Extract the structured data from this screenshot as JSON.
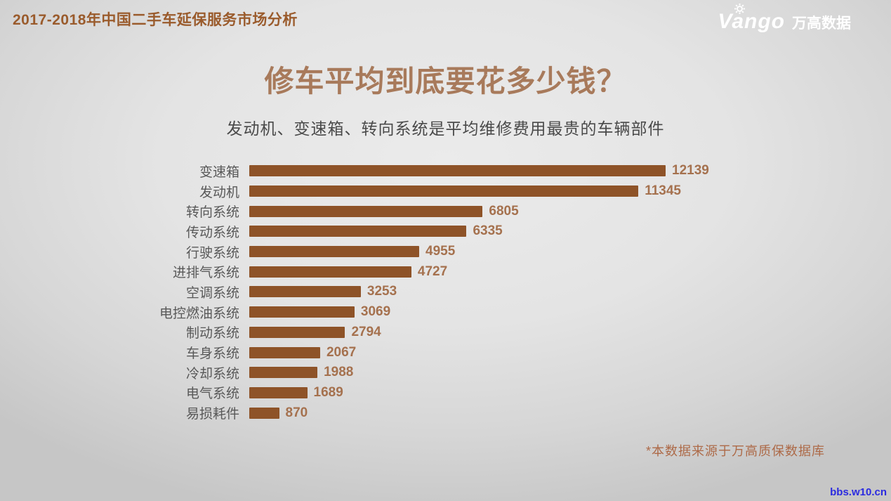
{
  "header": {
    "report_title": "2017-2018年中国二手车延保服务市场分析",
    "logo": {
      "brand": "Vango",
      "brand_cn": "万高数据",
      "icon": "gear-icon"
    }
  },
  "main": {
    "title": "修车平均到底要花多少钱？",
    "subtitle": "发动机、变速箱、转向系统是平均维修费用最贵的车辆部件"
  },
  "chart_data": {
    "type": "bar",
    "orientation": "horizontal",
    "title": "修车平均到底要花多少钱？",
    "subtitle": "发动机、变速箱、转向系统是平均维修费用最贵的车辆部件",
    "categories": [
      "变速箱",
      "发动机",
      "转向系统",
      "传动系统",
      "行驶系统",
      "进排气系统",
      "空调系统",
      "电控燃油系统",
      "制动系统",
      "车身系统",
      "冷却系统",
      "电气系统",
      "易损耗件"
    ],
    "values": [
      12139,
      11345,
      6805,
      6335,
      4955,
      4727,
      3253,
      3069,
      2794,
      2067,
      1988,
      1689,
      870
    ],
    "xlabel": "",
    "ylabel": "",
    "xlim": [
      0,
      12139
    ],
    "grid": false,
    "legend": false,
    "data_labels": true,
    "bar_color": "#8e5328",
    "value_label_color": "#a5714e",
    "category_label_color": "#595959"
  },
  "footer": {
    "source_note": "*本数据来源于万高质保数据库",
    "watermark": "bbs.w10.cn"
  },
  "colors": {
    "report_title": "#9a5b2c",
    "page_title": "#a87a5b",
    "subtitle": "#4a4a4a",
    "source_note": "#ad6a48",
    "watermark": "#2b2be0",
    "logo_text": "#ffffff"
  }
}
